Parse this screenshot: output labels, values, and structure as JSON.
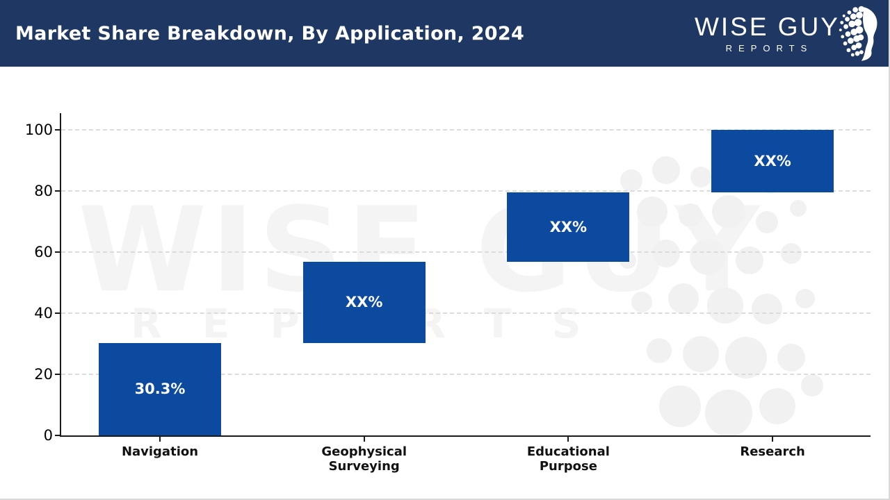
{
  "header": {
    "title": "Market Share Breakdown, By Application, 2024",
    "logo_line1": "WISE GUY",
    "logo_line2": "REPORTS"
  },
  "watermark": {
    "line1": "WISE GUY",
    "line2": "REPORTS"
  },
  "chart_data": {
    "type": "bar",
    "subtype": "waterfall",
    "title": "Market Share Breakdown, By Application, 2024",
    "categories": [
      "Navigation",
      "Geophysical Surveying",
      "Educational Purpose",
      "Research"
    ],
    "category_lines": [
      [
        "Navigation"
      ],
      [
        "Geophysical",
        "Surveying"
      ],
      [
        "Educational",
        "Purpose"
      ],
      [
        "Research"
      ]
    ],
    "bars": [
      {
        "category": "Navigation",
        "start": 0,
        "end": 30.3,
        "label": "30.3%"
      },
      {
        "category": "Geophysical Surveying",
        "start": 30.3,
        "end": 56.8,
        "label": "XX%"
      },
      {
        "category": "Educational Purpose",
        "start": 56.8,
        "end": 79.6,
        "label": "XX%"
      },
      {
        "category": "Research",
        "start": 79.6,
        "end": 100,
        "label": "XX%"
      }
    ],
    "yticks": [
      0,
      20,
      40,
      60,
      80,
      100
    ],
    "ylim": [
      0,
      105
    ],
    "xlabel": "",
    "ylabel": "",
    "legend": "none",
    "grid": "horizontal-dashed",
    "colors": {
      "bar": "#0c4aa0",
      "bar_label": "#ffffff",
      "axis": "#1a1a1a",
      "grid": "#dbdbdb",
      "header_bg": "#1f3863",
      "watermark": "#f4f4f4"
    }
  }
}
